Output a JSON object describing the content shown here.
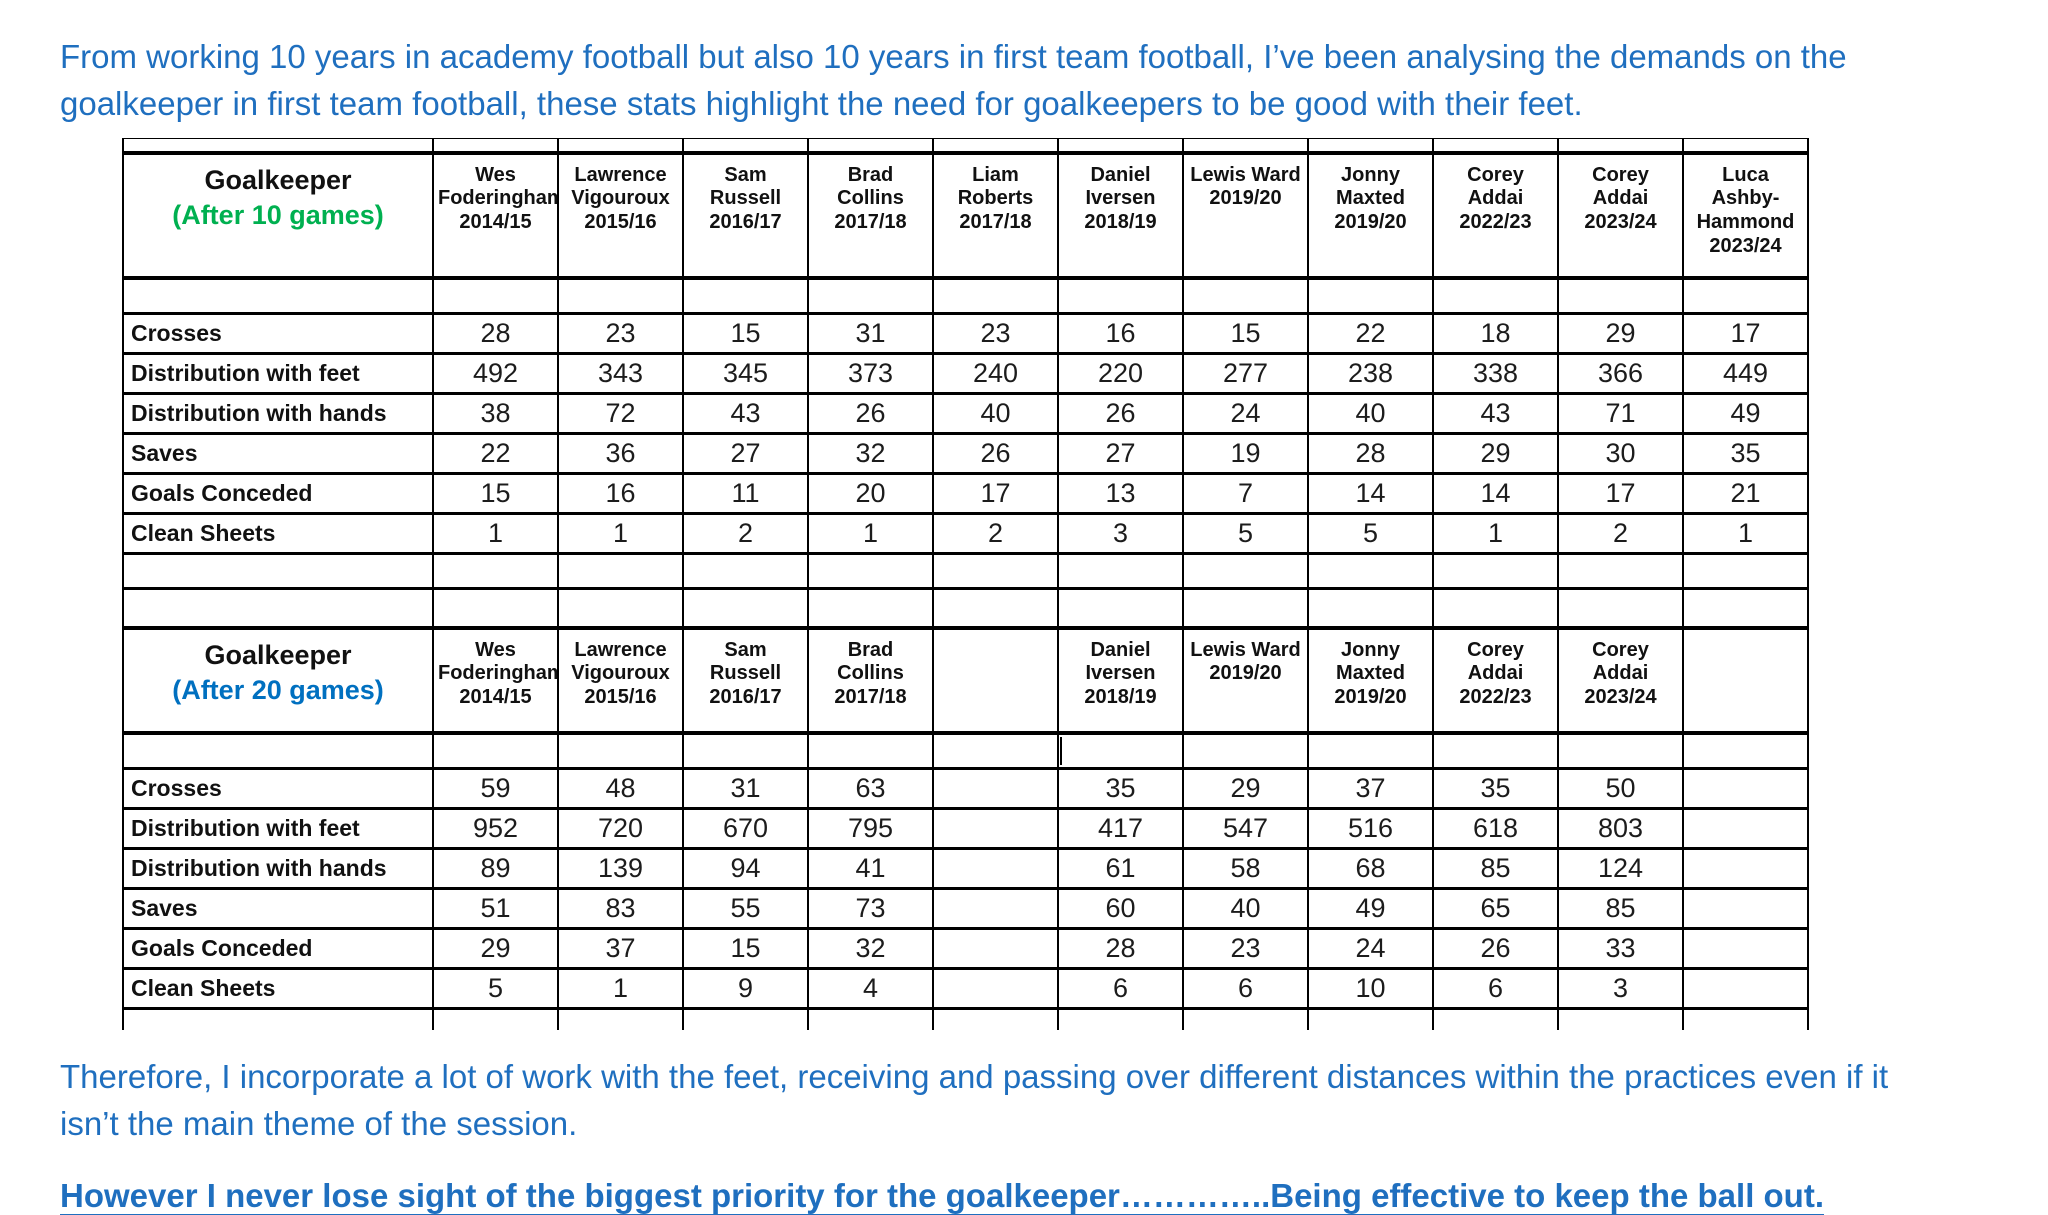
{
  "paragraphs": {
    "intro": "From working 10 years in academy football but also 10 years in first team football, I’ve been analysing the demands on the goalkeeper in first team football, these stats highlight the need for goalkeepers to be good with their feet.",
    "outro": "Therefore, I incorporate a lot of work with the feet, receiving and passing over different distances within the practices even if it isn’t the main theme of the session.",
    "footer": "However I never lose sight of the biggest priority for the goalkeeper…………..Being effective to keep the ball out."
  },
  "colors": {
    "accent_blue": "#1F6FBF",
    "subtitle_green": "#00B050",
    "subtitle_blue": "#0070C0",
    "table_border": "#000000",
    "background": "#FFFFFF"
  },
  "grid": {
    "sections": [
      {
        "title": "Goalkeeper",
        "subtitle": "(After 10 games)",
        "subtitle_color": "#00B050",
        "columns": [
          {
            "name": "Wes Foderingham",
            "season": "2014/15"
          },
          {
            "name": "Lawrence Vigouroux",
            "season": "2015/16"
          },
          {
            "name": "Sam Russell",
            "season": "2016/17"
          },
          {
            "name": "Brad Collins",
            "season": "2017/18"
          },
          {
            "name": "Liam Roberts",
            "season": "2017/18"
          },
          {
            "name": "Daniel Iversen",
            "season": "2018/19"
          },
          {
            "name": "Lewis Ward",
            "season": "2019/20"
          },
          {
            "name": "Jonny Maxted",
            "season": "2019/20"
          },
          {
            "name": "Corey Addai",
            "season": "2022/23"
          },
          {
            "name": "Corey Addai",
            "season": "2023/24"
          },
          {
            "name": "Luca Ashby-Hammond",
            "season": "2023/24"
          }
        ],
        "rows": [
          {
            "label": "Crosses",
            "values": [
              28,
              23,
              15,
              31,
              23,
              16,
              15,
              22,
              18,
              29,
              17
            ]
          },
          {
            "label": "Distribution with feet",
            "values": [
              492,
              343,
              345,
              373,
              240,
              220,
              277,
              238,
              338,
              366,
              449
            ]
          },
          {
            "label": "Distribution with hands",
            "values": [
              38,
              72,
              43,
              26,
              40,
              26,
              24,
              40,
              43,
              71,
              49
            ]
          },
          {
            "label": "Saves",
            "values": [
              22,
              36,
              27,
              32,
              26,
              27,
              19,
              28,
              29,
              30,
              35
            ]
          },
          {
            "label": "Goals Conceded",
            "values": [
              15,
              16,
              11,
              20,
              17,
              13,
              7,
              14,
              14,
              17,
              21
            ]
          },
          {
            "label": "Clean Sheets",
            "values": [
              1,
              1,
              2,
              1,
              2,
              3,
              5,
              5,
              1,
              2,
              1
            ]
          }
        ]
      },
      {
        "title": "Goalkeeper",
        "subtitle": "(After 20 games)",
        "subtitle_color": "#0070C0",
        "columns": [
          {
            "name": "Wes Foderingham",
            "season": "2014/15"
          },
          {
            "name": "Lawrence Vigouroux",
            "season": "2015/16"
          },
          {
            "name": "Sam Russell",
            "season": "2016/17"
          },
          {
            "name": "Brad Collins",
            "season": "2017/18"
          },
          {
            "name": "",
            "season": ""
          },
          {
            "name": "Daniel Iversen",
            "season": "2018/19"
          },
          {
            "name": "Lewis Ward",
            "season": "2019/20"
          },
          {
            "name": "Jonny Maxted",
            "season": "2019/20"
          },
          {
            "name": "Corey Addai",
            "season": "2022/23"
          },
          {
            "name": "Corey Addai",
            "season": "2023/24"
          },
          {
            "name": "",
            "season": ""
          }
        ],
        "rows": [
          {
            "label": "Crosses",
            "values": [
              59,
              48,
              31,
              63,
              "",
              35,
              29,
              37,
              35,
              50,
              ""
            ]
          },
          {
            "label": "Distribution with feet",
            "values": [
              952,
              720,
              670,
              795,
              "",
              417,
              547,
              516,
              618,
              803,
              ""
            ]
          },
          {
            "label": "Distribution with hands",
            "values": [
              89,
              139,
              94,
              41,
              "",
              61,
              58,
              68,
              85,
              124,
              ""
            ]
          },
          {
            "label": "Saves",
            "values": [
              51,
              83,
              55,
              73,
              "",
              60,
              40,
              49,
              65,
              85,
              ""
            ]
          },
          {
            "label": "Goals Conceded",
            "values": [
              29,
              37,
              15,
              32,
              "",
              28,
              23,
              24,
              26,
              33,
              ""
            ]
          },
          {
            "label": "Clean Sheets",
            "values": [
              5,
              1,
              9,
              4,
              "",
              6,
              6,
              10,
              6,
              3,
              ""
            ]
          }
        ]
      }
    ]
  }
}
